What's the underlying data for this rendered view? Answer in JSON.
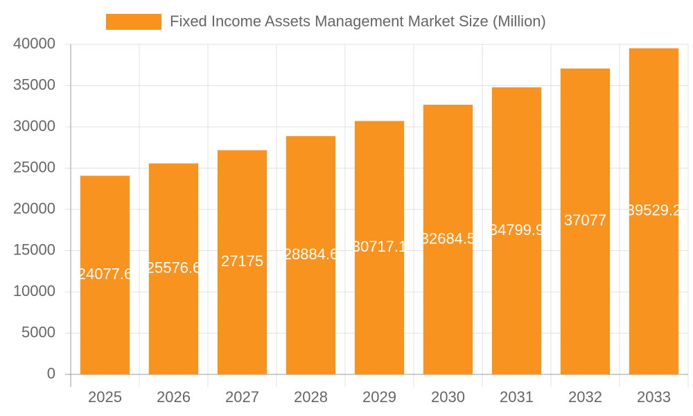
{
  "chart_data": {
    "type": "bar",
    "series": [
      {
        "name": "Fixed Income Assets Management Market Size (Million)",
        "color": "#f7931e",
        "values": [
          24077.6,
          25576.6,
          27175.0,
          28884.6,
          30717.1,
          32684.5,
          34799.9,
          37077,
          39529.2
        ]
      }
    ],
    "categories": [
      "2025",
      "2026",
      "2027",
      "2028",
      "2029",
      "2030",
      "2031",
      "2032",
      "2033"
    ],
    "ylim": [
      0,
      40000
    ],
    "yticks": [
      0,
      5000,
      10000,
      15000,
      20000,
      25000,
      30000,
      35000,
      40000
    ],
    "grid": true
  }
}
